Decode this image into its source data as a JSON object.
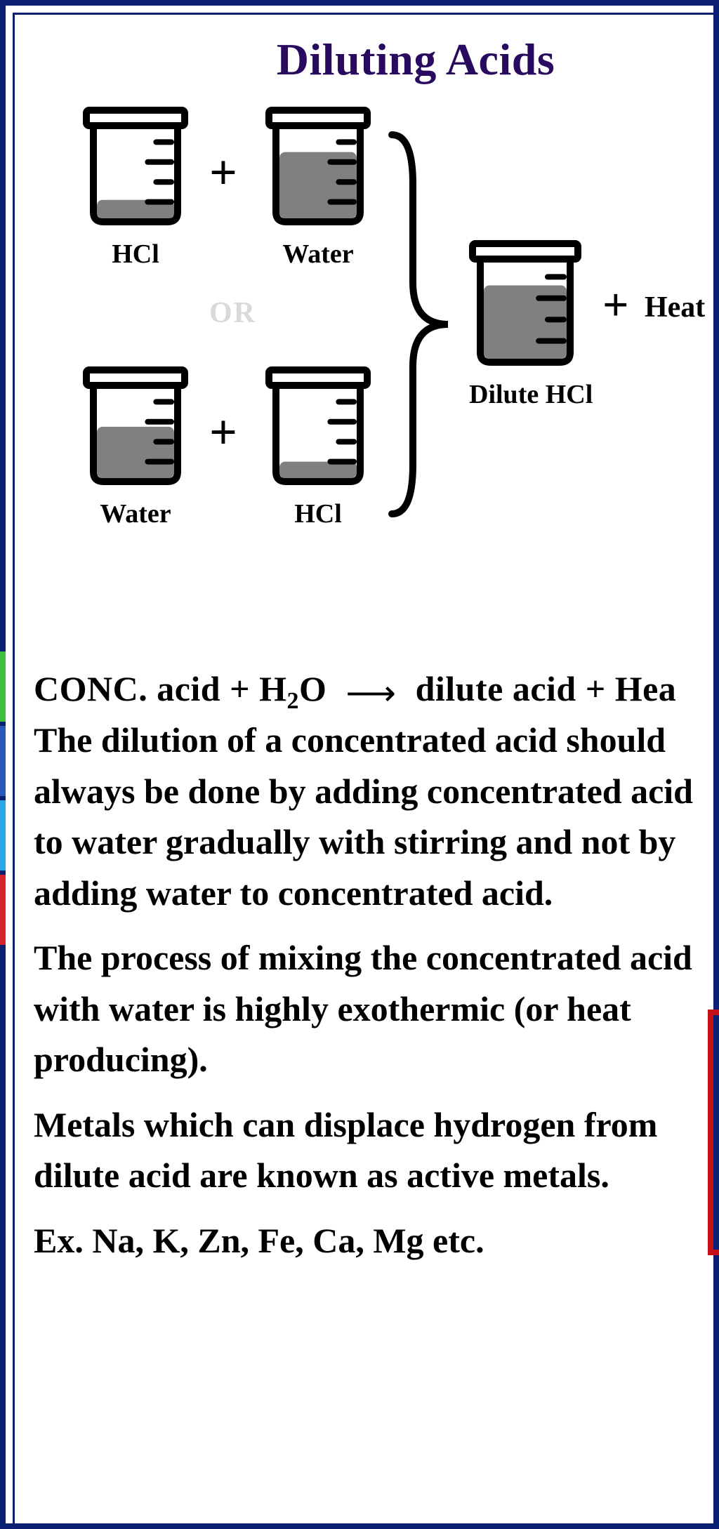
{
  "title": "Diluting Acids",
  "diagram": {
    "top_row": {
      "left_label": "HCl",
      "right_label": "Water",
      "left_fill": 0.22,
      "right_fill": 0.7
    },
    "or_label": "OR",
    "bottom_row": {
      "left_label": "Water",
      "right_label": "HCl",
      "left_fill": 0.55,
      "right_fill": 0.2
    },
    "result_label": "Dilute HCl",
    "result_fill": 0.72,
    "plus": "+",
    "heat_label": "Heat",
    "beaker_colors": {
      "outline": "#000000",
      "outline_width": 10,
      "liquid_fill": "#808080",
      "tick_color": "#000000"
    }
  },
  "equation": {
    "lhs": "CONC. acid + H",
    "sub": "2",
    "mid": "O",
    "arrow": "⟶",
    "rhs": "dilute acid + Hea"
  },
  "paragraphs": [
    "The dilution of a concentrated acid should always be done by adding concentrated acid to water gradually with stirring and not by adding water to concentrated acid.",
    "The process of mixing the concentrated acid with water is highly exothermic (or heat producing).",
    "Metals which can displace hydrogen from dilute acid are known as active metals.",
    "Ex. Na, K, Zn, Fe, Ca, Mg etc."
  ],
  "side_tag_colors": [
    "#3fbf3f",
    "#2a58b8",
    "#2aa8e6",
    "#d4232a"
  ],
  "font_family": "Times New Roman"
}
